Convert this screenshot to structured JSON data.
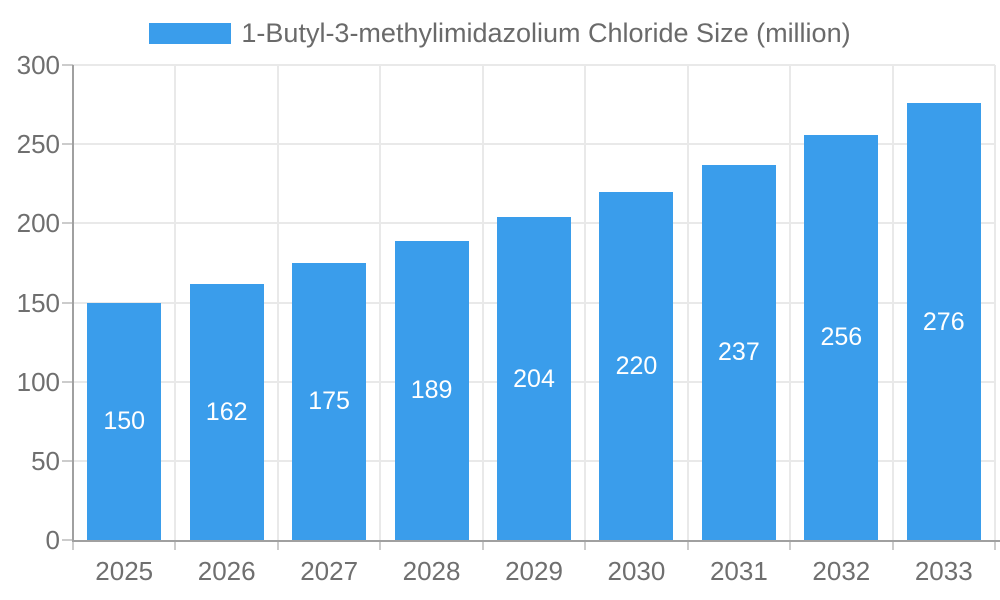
{
  "chart_data": {
    "type": "bar",
    "legend_label": "1-Butyl-3-methylimidazolium Chloride Size (million)",
    "categories": [
      "2025",
      "2026",
      "2027",
      "2028",
      "2029",
      "2030",
      "2031",
      "2032",
      "2033"
    ],
    "values": [
      150,
      162,
      175,
      189,
      204,
      220,
      237,
      256,
      276
    ],
    "title": "",
    "xlabel": "",
    "ylabel": "",
    "ylim": [
      0,
      300
    ],
    "yticks": [
      0,
      50,
      100,
      150,
      200,
      250,
      300
    ],
    "grid": true,
    "legend_position": "top",
    "colors": {
      "bar": "#3a9deb",
      "value_label": "#ffffff",
      "axis_text": "#6f6f6f",
      "legend_text": "#6a6a6a",
      "gridline": "#e9e9e9",
      "axis_line": "#a0a0a0",
      "tick": "#cccccc"
    }
  }
}
